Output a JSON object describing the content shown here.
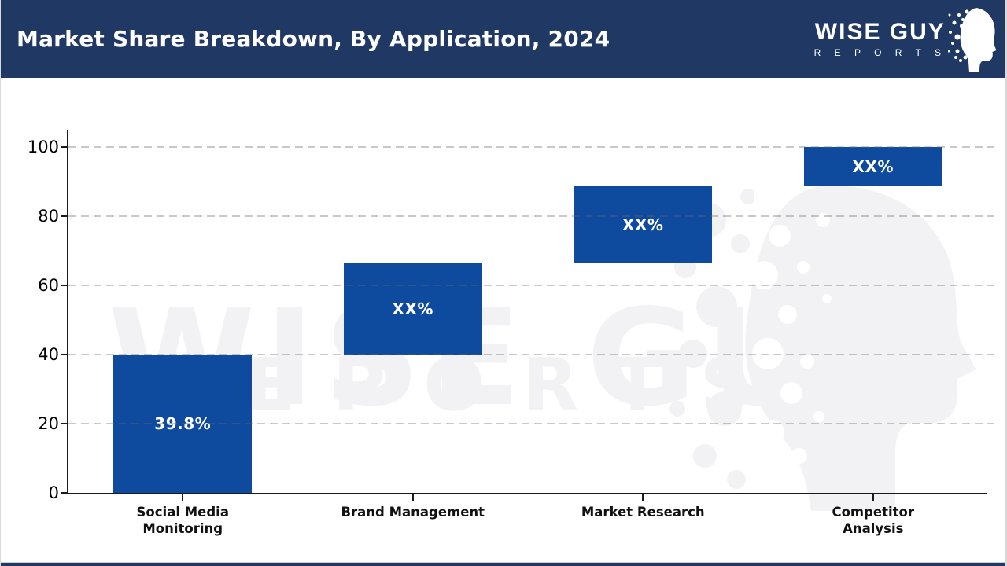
{
  "header": {
    "title": "Market Share Breakdown, By Application, 2024",
    "logo": {
      "line1": "WISE GUY",
      "line2": "R E P O R T S"
    }
  },
  "watermark": {
    "line1": "WISE GUY",
    "line2": "REPORTS"
  },
  "colors": {
    "header_bg": "#203864",
    "bar_blue": "#0e4a9e",
    "bar_label_text": "#ffffff",
    "gridline": "#d6d6d6",
    "axis": "#1a1a1a",
    "watermark": "#f2f2f4"
  },
  "chart_data": {
    "type": "bar",
    "variant": "waterfall",
    "title": "Market Share Breakdown, By Application, 2024",
    "xlabel": "",
    "ylabel": "",
    "ylim": [
      0,
      100
    ],
    "yticks": [
      0,
      20,
      40,
      60,
      80,
      100
    ],
    "grid": "horizontal-dashed",
    "legend": null,
    "categories": [
      "Social Media\nMonitoring",
      "Brand Management",
      "Market Research",
      "Competitor\nAnalysis"
    ],
    "segments": [
      {
        "category": "Social Media\nMonitoring",
        "start": 0,
        "end": 39.8,
        "label": "39.8%"
      },
      {
        "category": "Brand Management",
        "start": 39.8,
        "end": 66.6,
        "label": "XX%"
      },
      {
        "category": "Market Research",
        "start": 66.6,
        "end": 88.6,
        "label": "XX%"
      },
      {
        "category": "Competitor\nAnalysis",
        "start": 88.6,
        "end": 100,
        "label": "XX%"
      }
    ]
  }
}
